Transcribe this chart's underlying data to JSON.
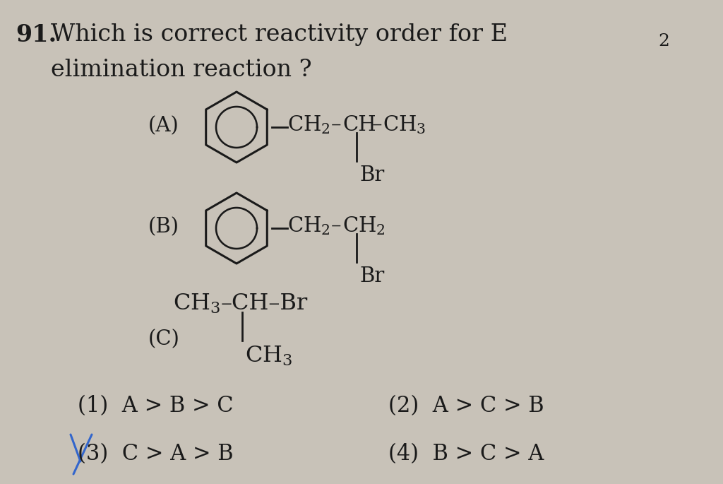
{
  "background_color": "#c8c2b8",
  "font_color": "#1a1a1a",
  "question_number": "91.",
  "q_line1": "Which is correct reactivity order for E",
  "q_subscript": "2",
  "q_line2": "elimination reaction ?",
  "label_A": "(A)",
  "label_B": "(B)",
  "label_C": "(C)",
  "answer_1": "(1)  A > B > C",
  "answer_2": "(2)  A > C > B",
  "answer_3": "(3)  C > A > B",
  "answer_4": "(4)  B > C > A",
  "title_fontsize": 24,
  "body_fontsize": 21,
  "answer_fontsize": 22,
  "mark_color": "#3366cc"
}
